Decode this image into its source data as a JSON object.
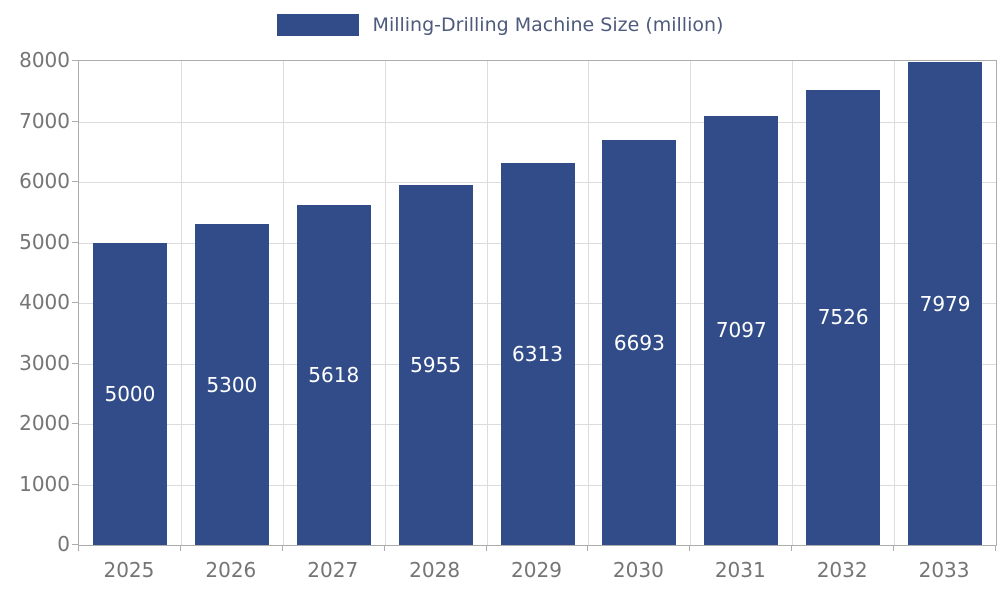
{
  "chart_data": {
    "type": "bar",
    "title": "Milling-Drilling Machine Size (million)",
    "categories": [
      "2025",
      "2026",
      "2027",
      "2028",
      "2029",
      "2030",
      "2031",
      "2032",
      "2033"
    ],
    "values": [
      5000,
      5300,
      5618,
      5955,
      6313,
      6693,
      7097,
      7526,
      7979
    ],
    "xlabel": "",
    "ylabel": "",
    "ylim": [
      0,
      8000
    ],
    "ytick_step": 1000,
    "ytick_labels": [
      "0",
      "1000",
      "2000",
      "3000",
      "4000",
      "5000",
      "6000",
      "7000",
      "8000"
    ],
    "grid": true,
    "legend_position": "top",
    "colors": {
      "bar": "#314c88",
      "value_label": "#ffffff",
      "axis_text": "#757575",
      "legend_text": "#4e5b7c",
      "gridline": "#dcdcdc",
      "plot_border": "#adadad",
      "background": "#ffffff"
    }
  }
}
